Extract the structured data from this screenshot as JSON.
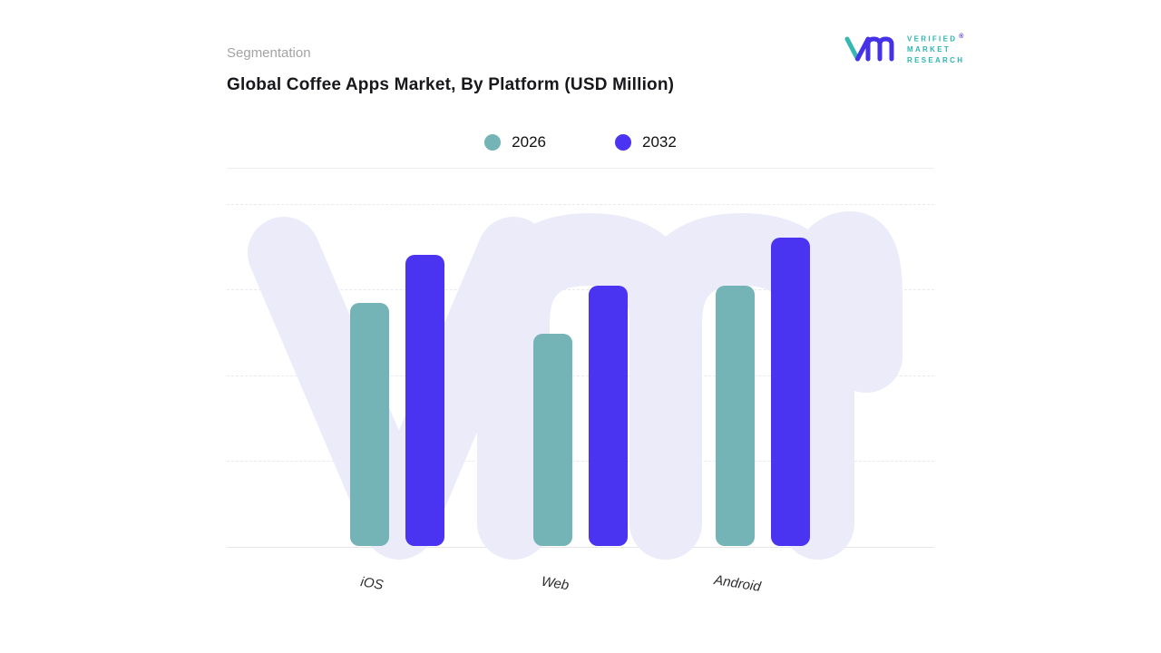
{
  "header": {
    "eyebrow": "Segmentation",
    "title": "Global Coffee Apps Market, By Platform (USD Million)"
  },
  "logo": {
    "lines": [
      "VERIFIED",
      "MARKET",
      "RESEARCH"
    ],
    "registered": "®",
    "teal": "#35b7b4",
    "purple": "#4431e8"
  },
  "legend": [
    {
      "label": "2026",
      "color": "#74b3b6"
    },
    {
      "label": "2032",
      "color": "#4b33f2"
    }
  ],
  "chart_data": {
    "type": "bar",
    "title": "Global Coffee Apps Market, By Platform (USD Million)",
    "categories": [
      "iOS",
      "Web",
      "Android"
    ],
    "series": [
      {
        "name": "2026",
        "color": "#74b3b6",
        "values": [
          71,
          62,
          76
        ]
      },
      {
        "name": "2032",
        "color": "#4b33f2",
        "values": [
          85,
          76,
          90
        ]
      }
    ],
    "xlabel": "",
    "ylabel": "",
    "ylim": [
      0,
      100
    ],
    "grid": "dashed-horizontal",
    "legend_position": "top-center",
    "value_labels": false
  },
  "colors": {
    "watermark": "#ecebfa",
    "grid": "#e9e9ec",
    "baseline": "#e6e6e9"
  }
}
